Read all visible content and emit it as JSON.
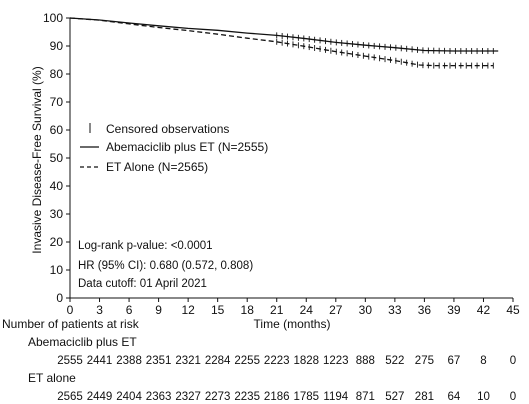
{
  "chart_data": {
    "type": "line",
    "ylabel": "Invasive Disease-Free Survival (%)",
    "xlabel": "Time (months)",
    "xlim": [
      0,
      45
    ],
    "ylim": [
      0,
      100
    ],
    "xticks": [
      0,
      3,
      6,
      9,
      12,
      15,
      18,
      21,
      24,
      27,
      30,
      33,
      36,
      39,
      42,
      45
    ],
    "yticks": [
      0,
      10,
      20,
      30,
      40,
      50,
      60,
      70,
      80,
      90,
      100
    ],
    "grid": false,
    "legend": {
      "placement": "middle-left",
      "censored_label": "Censored observations",
      "entries": [
        "Abemaciclib plus ET (N=2555)",
        "ET Alone (N=2565)"
      ]
    },
    "series": [
      {
        "name": "Abemaciclib plus ET (N=2555)",
        "style": "solid",
        "x": [
          0,
          3,
          6,
          9,
          12,
          15,
          18,
          21,
          24,
          27,
          30,
          33,
          36,
          39,
          42,
          43.5
        ],
        "y": [
          100,
          99.3,
          98.2,
          97.2,
          96.3,
          95.6,
          94.6,
          93.8,
          92.6,
          91.3,
          90.3,
          89.4,
          88.4,
          88.2,
          88.2,
          88.2
        ]
      },
      {
        "name": "ET Alone (N=2565)",
        "style": "dashed",
        "x": [
          0,
          3,
          6,
          9,
          12,
          15,
          18,
          21,
          24,
          27,
          30,
          33,
          35.5,
          37,
          39,
          42,
          43
        ],
        "y": [
          100,
          99.2,
          97.9,
          96.6,
          95.5,
          94.2,
          92.8,
          91.5,
          89.8,
          88.0,
          86.4,
          84.8,
          83.2,
          83.0,
          83.0,
          83.0,
          83.0
        ]
      }
    ],
    "annotations": [
      "Log-rank p-value: <0.0001",
      "HR (95% CI): 0.680 (0.572, 0.808)",
      "Data cutoff: 01 April 2021"
    ],
    "at_risk": {
      "title": "Number of patients at risk",
      "rows": [
        {
          "label": "Abemaciclib plus ET",
          "values": [
            2555,
            2441,
            2388,
            2351,
            2321,
            2284,
            2255,
            2223,
            1828,
            1223,
            888,
            522,
            275,
            67,
            8,
            0
          ]
        },
        {
          "label": "ET alone",
          "values": [
            2565,
            2449,
            2404,
            2363,
            2327,
            2273,
            2235,
            2186,
            1785,
            1194,
            871,
            527,
            281,
            64,
            10,
            0
          ]
        }
      ]
    }
  }
}
